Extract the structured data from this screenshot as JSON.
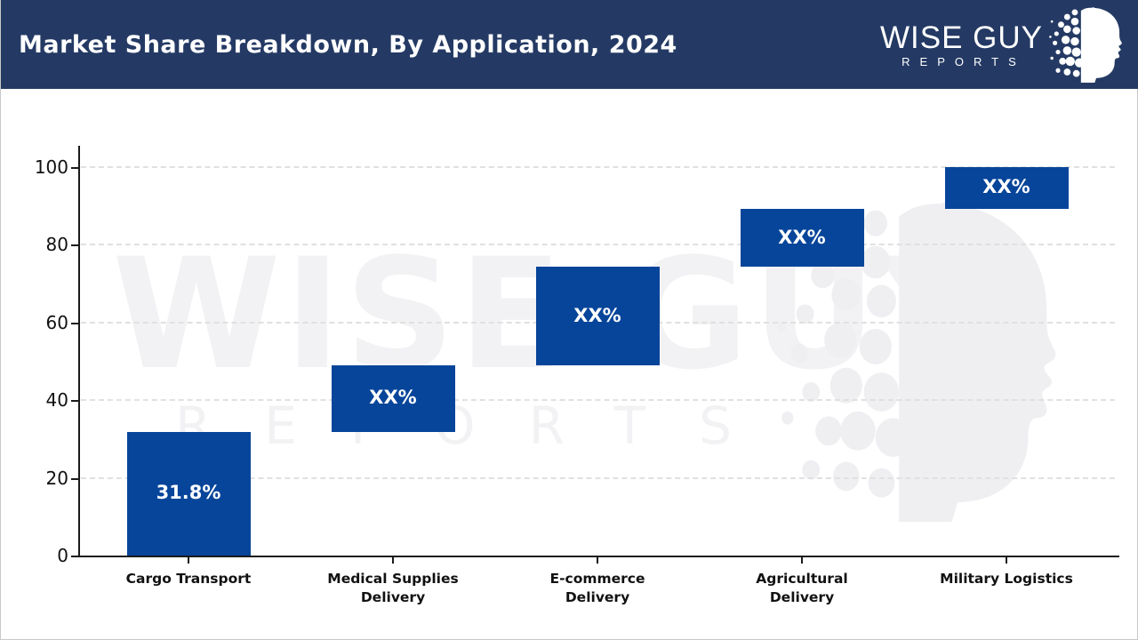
{
  "header": {
    "title": "Market Share Breakdown, By Application, 2024",
    "logo": {
      "line1": "WISE GUY",
      "line2": "REPORTS"
    }
  },
  "watermark": {
    "line1": "WISE GUY",
    "line2": "REPORTS"
  },
  "colors": {
    "header_bg": "#243a64",
    "bar_blue": "#07459a",
    "bar_label": "#ffffff",
    "watermark_gray": "#f2f2f4",
    "gridline": "#e0e0e0"
  },
  "chart_data": {
    "type": "bar",
    "subtype": "waterfall-floating-segments",
    "title": "Market Share Breakdown, By Application, 2024",
    "xlabel": "",
    "ylabel": "",
    "categories": [
      "Cargo Transport",
      "Medical Supplies\nDelivery",
      "E-commerce\nDelivery",
      "Agricultural\nDelivery",
      "Military Logistics"
    ],
    "segments": [
      {
        "category": "Cargo Transport",
        "start": 0,
        "end": 31.8,
        "label": "31.8%"
      },
      {
        "category": "Medical Supplies\nDelivery",
        "start": 31.8,
        "end": 49.0,
        "label": "XX%"
      },
      {
        "category": "E-commerce\nDelivery",
        "start": 49.0,
        "end": 74.2,
        "label": "XX%"
      },
      {
        "category": "Agricultural\nDelivery",
        "start": 74.2,
        "end": 89.1,
        "label": "XX%"
      },
      {
        "category": "Military Logistics",
        "start": 89.1,
        "end": 100,
        "label": "XX%"
      }
    ],
    "yticks": [
      0,
      20,
      40,
      60,
      80,
      100
    ],
    "ylim": [
      0,
      105
    ],
    "grid": "horizontal dashed",
    "legend": "none",
    "bar_color": "#07459a",
    "label_color": "#ffffff"
  }
}
